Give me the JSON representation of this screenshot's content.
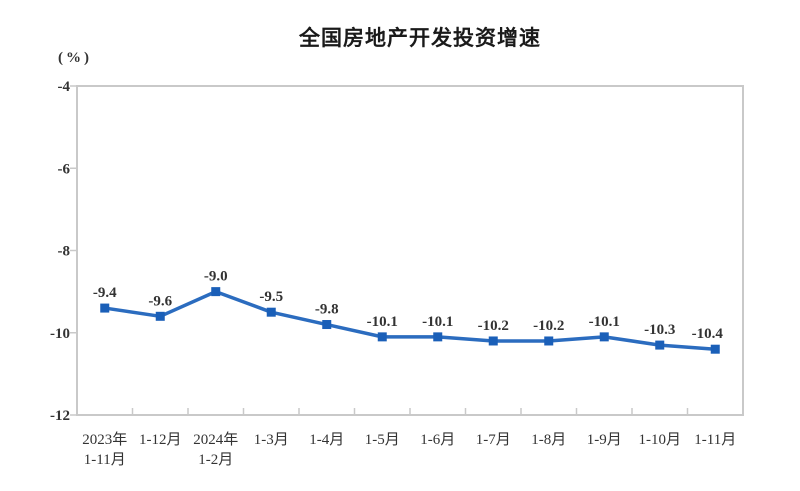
{
  "page": {
    "background": "#ffffff"
  },
  "chart_data": {
    "type": "line",
    "title": "全国房地产开发投资增速",
    "unit_label": "(%)",
    "categories": [
      [
        "2023年",
        "1-11月"
      ],
      [
        "1-12月"
      ],
      [
        "2024年",
        "1-2月"
      ],
      [
        "1-3月"
      ],
      [
        "1-4月"
      ],
      [
        "1-5月"
      ],
      [
        "1-6月"
      ],
      [
        "1-7月"
      ],
      [
        "1-8月"
      ],
      [
        "1-9月"
      ],
      [
        "1-10月"
      ],
      [
        "1-11月"
      ]
    ],
    "values": [
      -9.4,
      -9.6,
      -9.0,
      -9.5,
      -9.8,
      -10.1,
      -10.1,
      -10.2,
      -10.2,
      -10.1,
      -10.3,
      -10.4
    ],
    "data_labels": [
      "-9.4",
      "-9.6",
      "-9.0",
      "-9.5",
      "-9.8",
      "-10.1",
      "-10.1",
      "-10.2",
      "-10.2",
      "-10.1",
      "-10.3",
      "-10.4"
    ],
    "y_ticks": [
      -4,
      -6,
      -8,
      -10,
      -12
    ],
    "y_tick_labels": [
      "-4",
      "-6",
      "-8",
      "-10",
      "-12"
    ],
    "ylim": [
      -12,
      -4
    ],
    "xlabel": "",
    "ylabel": "(%)",
    "grid": false,
    "legend": "none",
    "colors": {
      "line": "#2b6cbf",
      "marker": "#1a5fb8",
      "axis": "#c9c9c9",
      "tick_text": "#333333",
      "data_label_text": "#333333",
      "title_text": "#1a1a1a"
    }
  }
}
